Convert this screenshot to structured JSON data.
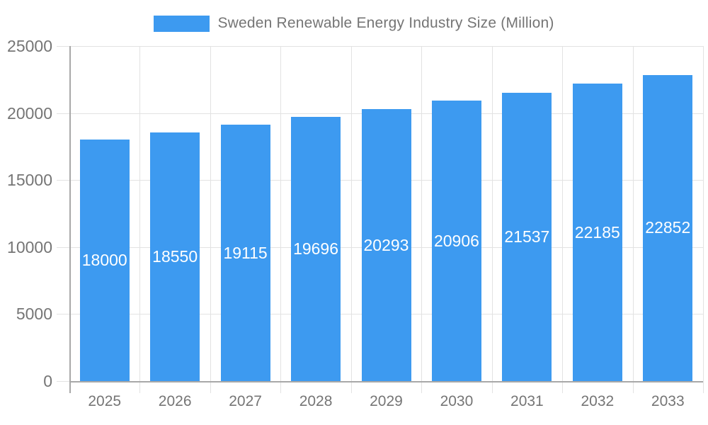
{
  "legend": {
    "label": "Sweden Renewable Energy Industry Size (Million)"
  },
  "chart_data": {
    "type": "bar",
    "title": "Sweden Renewable Energy Industry Size (Million)",
    "categories": [
      "2025",
      "2026",
      "2027",
      "2028",
      "2029",
      "2030",
      "2031",
      "2032",
      "2033"
    ],
    "values": [
      18000,
      18550,
      19115,
      19696,
      20293,
      20906,
      21537,
      22185,
      22852
    ],
    "value_labels": [
      "18000",
      "18550",
      "19115",
      "19696",
      "20293",
      "20906",
      "21537",
      "22185",
      "22852"
    ],
    "xlabel": "",
    "ylabel": "",
    "ylim": [
      0,
      25000
    ],
    "yticks": [
      0,
      5000,
      10000,
      15000,
      20000,
      25000
    ],
    "ytick_labels": [
      "0",
      "5000",
      "10000",
      "15000",
      "20000",
      "25000"
    ],
    "grid": true,
    "legend_position": "top-center",
    "colors": {
      "bar": "#3D9AF0",
      "bar_value_text": "#FFFFFF",
      "axis_text": "#757575",
      "gridline": "#E2E2E2",
      "axis_line": "#A8A8A8"
    }
  }
}
